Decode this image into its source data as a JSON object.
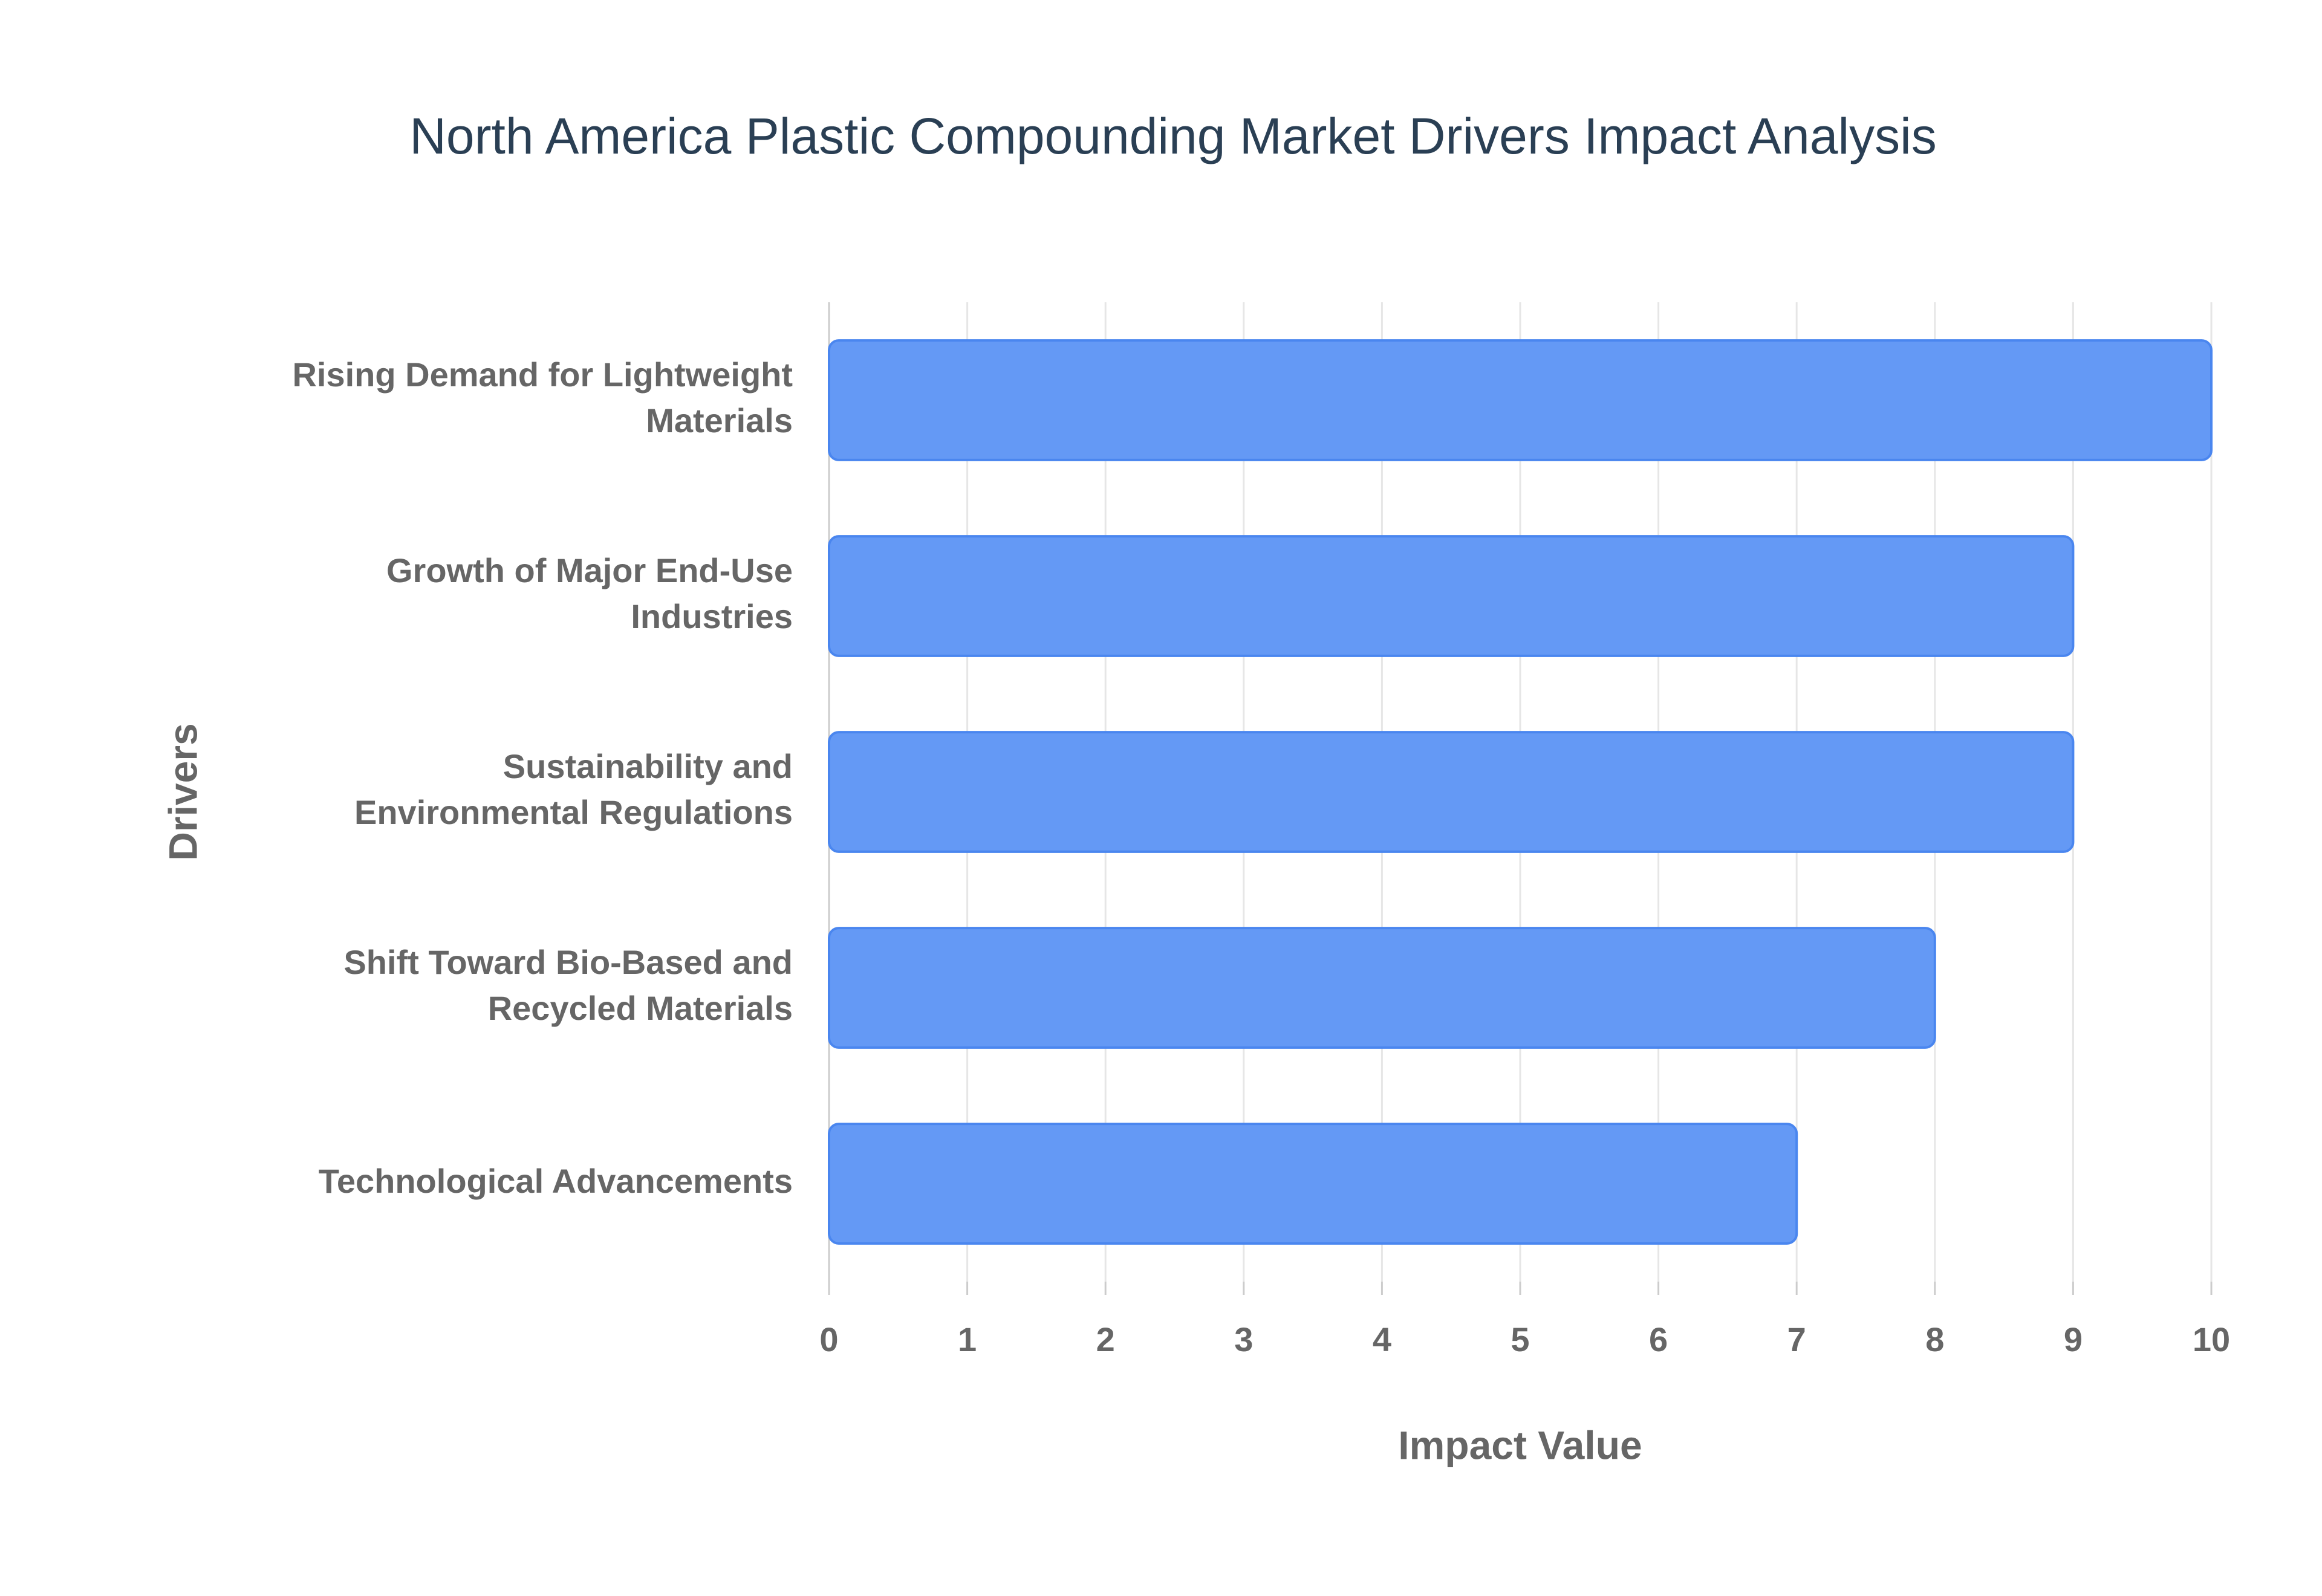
{
  "chart_data": {
    "type": "bar",
    "orientation": "horizontal",
    "title": "North America Plastic Compounding Market Drivers Impact Analysis",
    "x_label": "Impact Value",
    "y_label": "Drivers",
    "categories": [
      "Rising Demand for Lightweight Materials",
      "Growth of Major End-Use Industries",
      "Sustainability and Environmental Regulations",
      "Shift Toward Bio-Based and Recycled Materials",
      "Technological Advancements"
    ],
    "values": [
      10,
      9,
      9,
      8,
      7
    ],
    "color": "#6499f5",
    "xlim": [
      0,
      10
    ],
    "xticks": [
      0,
      1,
      2,
      3,
      4,
      5,
      6,
      7,
      8,
      9,
      10
    ],
    "grid": true
  }
}
